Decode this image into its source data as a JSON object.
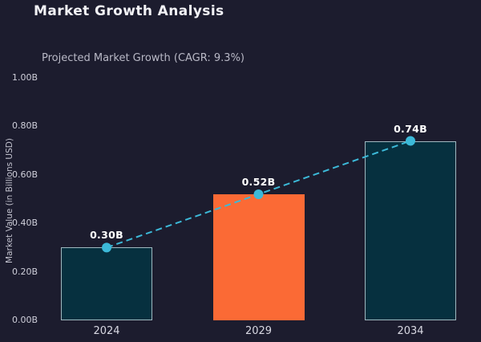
{
  "chart_data": {
    "type": "bar",
    "title": "Market Growth Analysis",
    "subtitle": "Projected Market Growth (CAGR: 9.3%)",
    "xlabel": "",
    "ylabel": "Market Value (in Billions USD)",
    "categories": [
      "2024",
      "2029",
      "2034"
    ],
    "values": [
      0.3,
      0.52,
      0.74
    ],
    "value_labels": [
      "0.30B",
      "0.52B",
      "0.74B"
    ],
    "ylim": [
      0,
      1.0
    ],
    "ytick_values": [
      0,
      0.2,
      0.4,
      0.6,
      0.8,
      1.0
    ],
    "ytick_labels": [
      "0.00B",
      "0.20B",
      "0.40B",
      "0.60B",
      "0.80B",
      "1.00B"
    ],
    "grid": false,
    "legend": "none",
    "trend_overlay": {
      "type": "line",
      "style": "dashed",
      "x": [
        "2024",
        "2029",
        "2034"
      ],
      "y": [
        0.3,
        0.52,
        0.74
      ],
      "color": "#3cb9d8",
      "marker_color": "#3cb9d8"
    },
    "colors": {
      "background": "#1c1c2e",
      "bar_fill": [
        "#06303f",
        "#fb6a35",
        "#06303f"
      ],
      "bar_border": [
        "#9fb8c0",
        "#fb6a35",
        "#9fb8c0"
      ],
      "title_text": "#f2f2f6",
      "subtitle_text": "#b9b9c6",
      "tick_text": "#cfcfda"
    }
  }
}
